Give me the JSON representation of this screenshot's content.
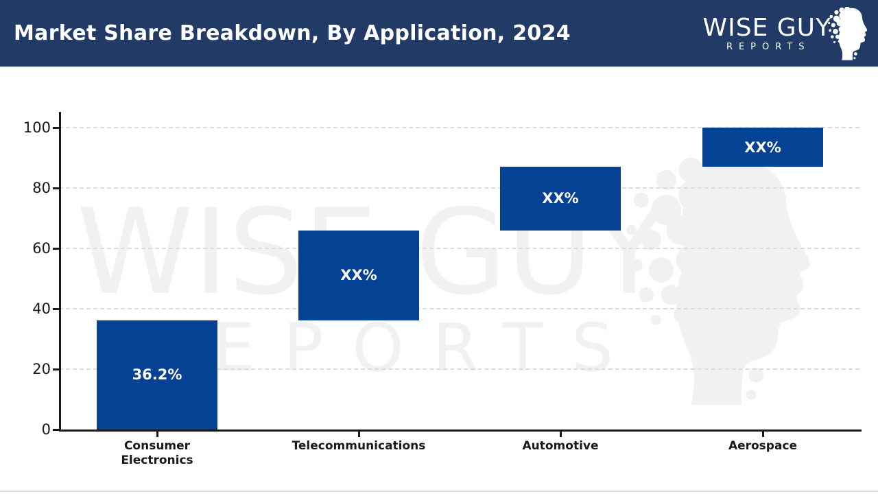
{
  "header": {
    "title": "Market Share Breakdown, By Application, 2024",
    "background_color": "#213a66",
    "logo": {
      "line1": "WISE GUY",
      "line2": "REPORTS"
    }
  },
  "watermark": {
    "line1": "WISE GUY",
    "line2": "REPORTS"
  },
  "chart_data": {
    "type": "bar",
    "variant": "waterfall",
    "title": "Market Share Breakdown, By Application, 2024",
    "categories": [
      "Consumer Electronics",
      "Telecommunications",
      "Automotive",
      "Aerospace"
    ],
    "category_lines": [
      [
        "Consumer",
        "Electronics"
      ],
      [
        "Telecommunications"
      ],
      [
        "Automotive"
      ],
      [
        "Aerospace"
      ]
    ],
    "segments": [
      {
        "category": "Consumer Electronics",
        "start": 0,
        "end": 36.2,
        "label": "36.2%"
      },
      {
        "category": "Telecommunications",
        "start": 36.2,
        "end": 66,
        "label": "XX%"
      },
      {
        "category": "Automotive",
        "start": 66,
        "end": 87,
        "label": "XX%"
      },
      {
        "category": "Aerospace",
        "start": 87,
        "end": 100,
        "label": "XX%"
      }
    ],
    "xlabel": "",
    "ylabel": "",
    "ylim": [
      0,
      100
    ],
    "yticks": [
      0,
      20,
      40,
      60,
      80,
      100
    ],
    "grid": "horizontal-dashed",
    "legend": "none",
    "bar_color": "#064294",
    "bar_label_color": "#ffffff",
    "gridline_color": "#dcdcdc",
    "axis_color": "#1a1a1a"
  }
}
